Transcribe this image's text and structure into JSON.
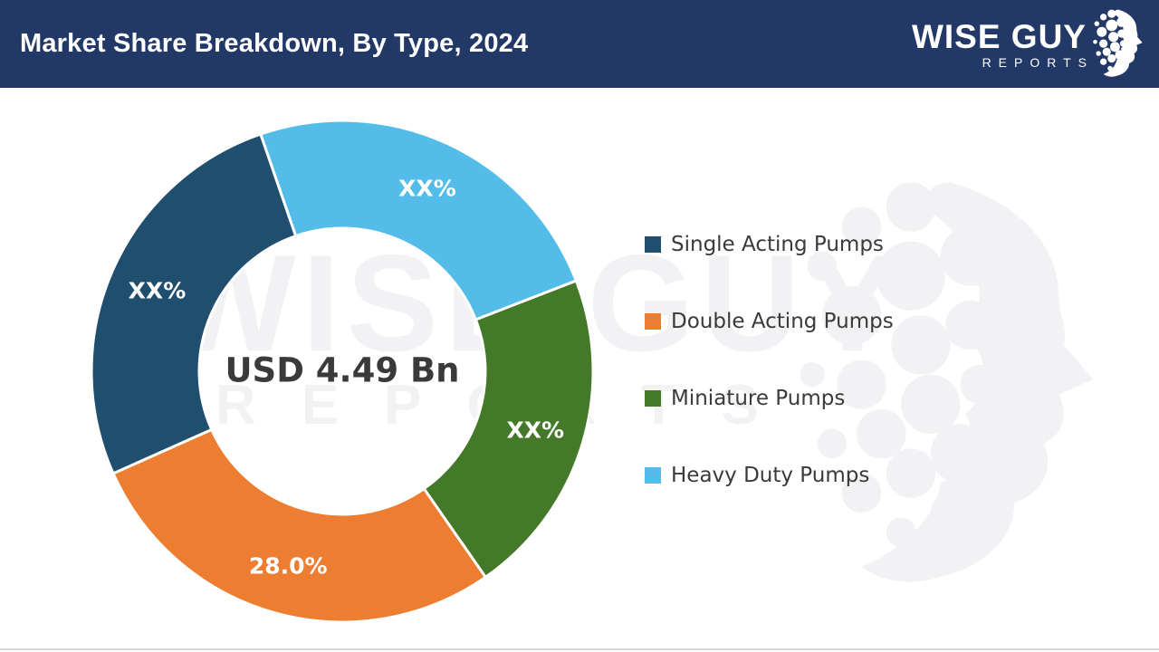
{
  "header": {
    "title": "Market Share Breakdown, By Type, 2024",
    "bg_color": "#223968",
    "logo": {
      "line1": "WISE GUY",
      "line2": "REPORTS"
    }
  },
  "watermark": {
    "line1": "WISE GUY",
    "line2": "REPORTS"
  },
  "chart_data": {
    "type": "pie",
    "subtype": "donut",
    "title": "Market Share Breakdown, By Type, 2024",
    "center_label": "USD 4.49 Bn",
    "start_angle_deg": 341,
    "direction": "clockwise",
    "inner_radius_ratio": 0.57,
    "legend_position": "right",
    "slices": [
      {
        "name": "Heavy Duty Pumps",
        "display_label": "XX%",
        "value_pct": 24.4,
        "color": "#54BCE8"
      },
      {
        "name": "Miniature Pumps",
        "display_label": "XX%",
        "value_pct": 21.2,
        "color": "#447929"
      },
      {
        "name": "Double Acting Pumps",
        "display_label": "28.0%",
        "value_pct": 28.0,
        "color": "#ED7D31"
      },
      {
        "name": "Single Acting Pumps",
        "display_label": "XX%",
        "value_pct": 26.4,
        "color": "#1F4E6F"
      }
    ]
  },
  "legend": {
    "items": [
      {
        "label": "Single Acting Pumps",
        "color": "#1F4E6F"
      },
      {
        "label": "Double Acting Pumps",
        "color": "#ED7D31"
      },
      {
        "label": "Miniature Pumps",
        "color": "#447929"
      },
      {
        "label": "Heavy Duty Pumps",
        "color": "#54BCE8"
      }
    ]
  }
}
